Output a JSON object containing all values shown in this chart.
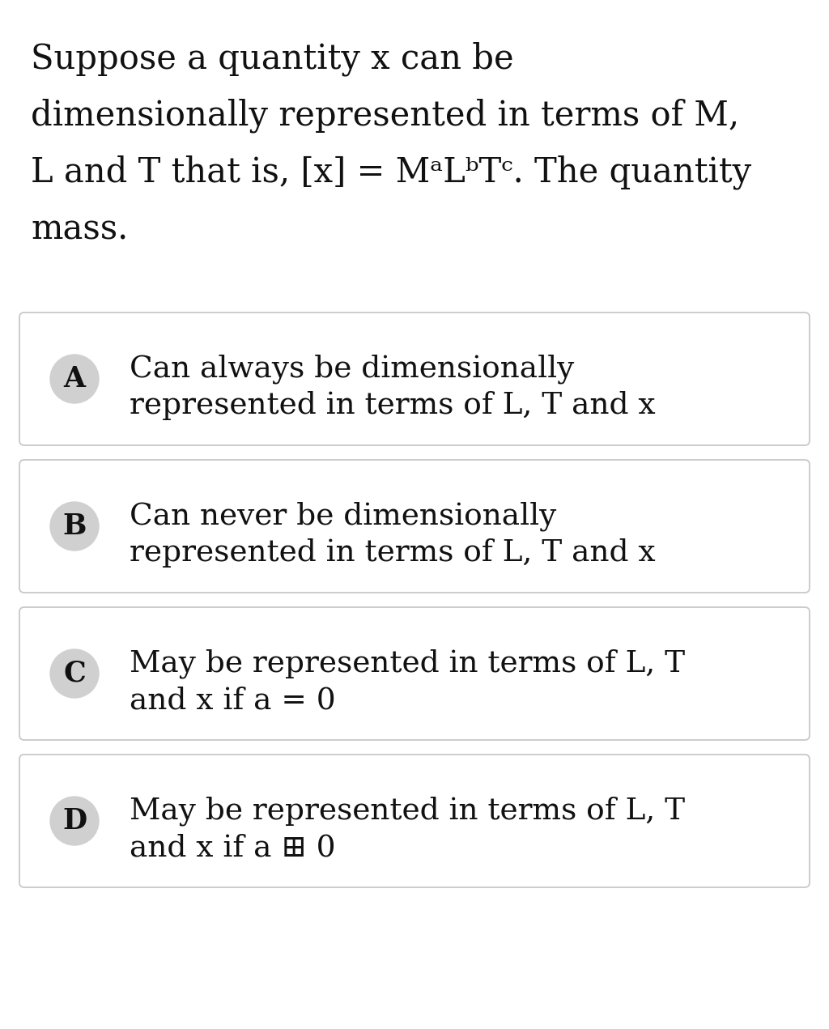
{
  "background_color": "#ffffff",
  "question_lines": [
    "Suppose a quantity x can be",
    "dimensionally represented in terms of M,",
    "L and T that is, [x] = MᵃLᵇTᶜ. The quantity",
    "mass."
  ],
  "options": [
    {
      "label": "A",
      "line1": "Can always be dimensionally",
      "line2": "represented in terms of L, T and x"
    },
    {
      "label": "B",
      "line1": "Can never be dimensionally",
      "line2": "represented in terms of L, T and x"
    },
    {
      "label": "C",
      "line1": "May be represented in terms of L, T",
      "line2": "and x if a = 0"
    },
    {
      "label": "D",
      "line1": "May be represented in terms of L, T",
      "line2": "and x if a ⊞ 0"
    }
  ],
  "option_box_facecolor": "#ffffff",
  "option_box_edgecolor": "#c8c8c8",
  "option_label_bg": "#d0d0d0",
  "text_color": "#111111",
  "font_size_question": 30,
  "font_size_option": 27,
  "font_size_label": 25,
  "fig_width": 10.24,
  "fig_height": 12.71,
  "dpi": 100
}
